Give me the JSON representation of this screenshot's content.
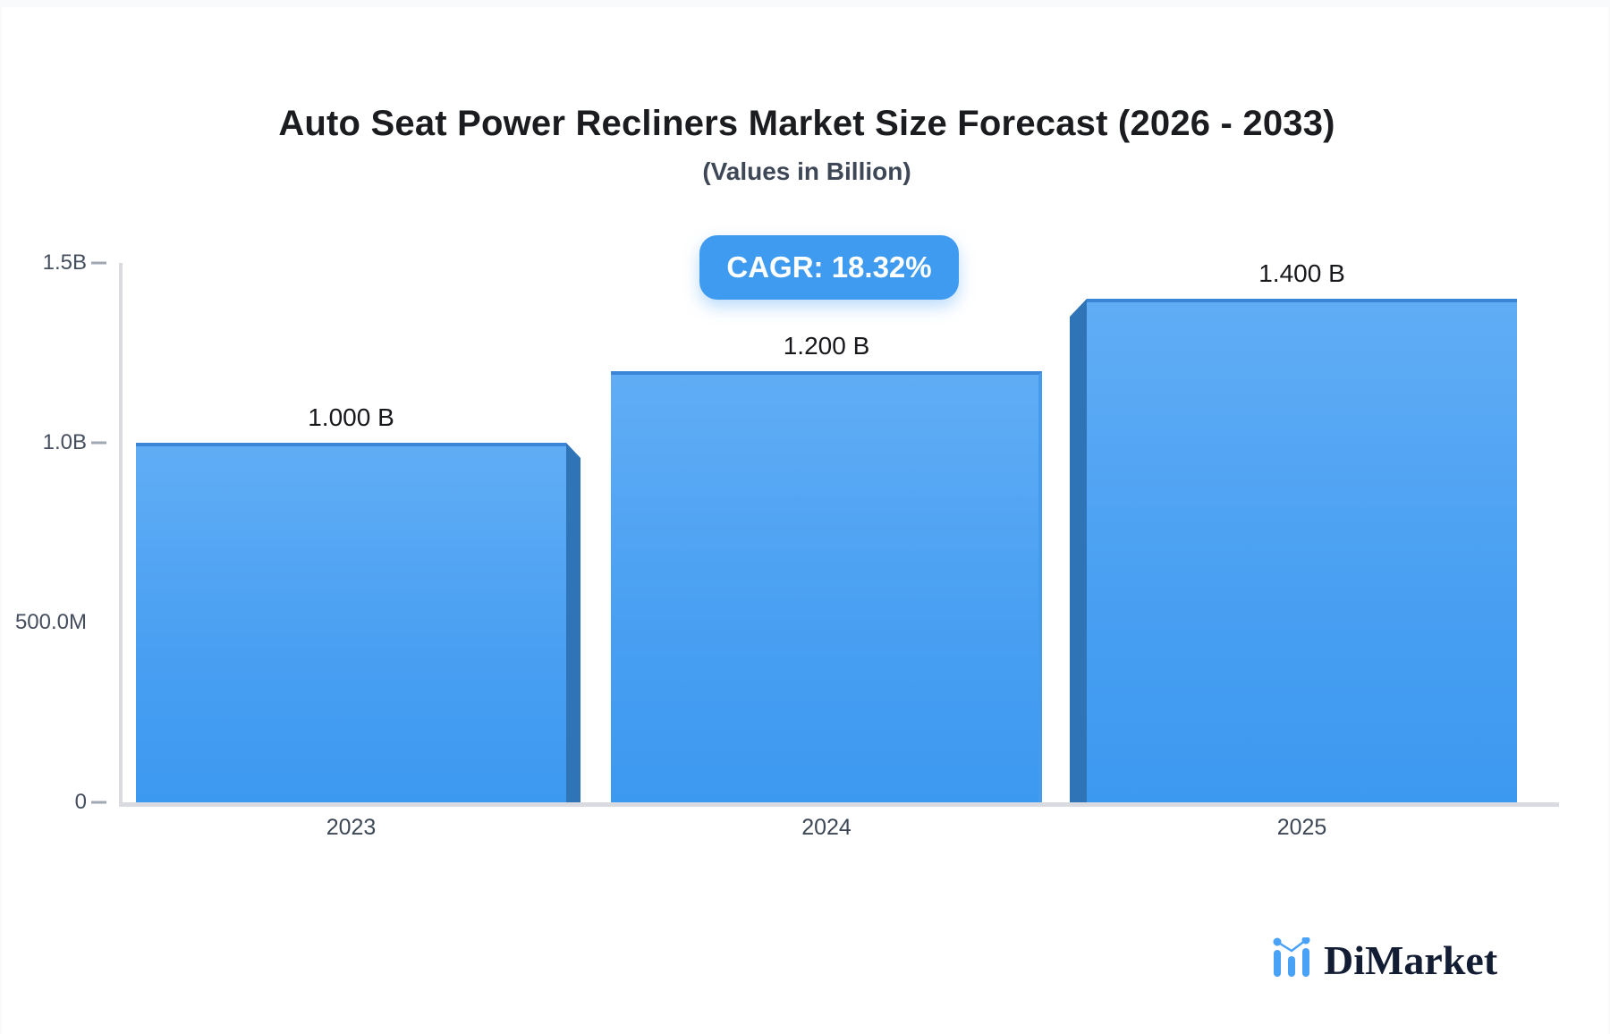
{
  "header": {
    "title": "Auto Seat Power Recliners Market Size Forecast (2026 - 2033)",
    "subtitle": "(Values in Billion)"
  },
  "badge": {
    "label": "CAGR: 18.32%",
    "bg": "#3f9bf0",
    "text_color": "#ffffff"
  },
  "chart_data": {
    "type": "bar",
    "title": "Auto Seat Power Recliners Market Size Forecast (2026 - 2033)",
    "subtitle": "(Values in Billion)",
    "categories": [
      "2023",
      "2024",
      "2025"
    ],
    "values": [
      1.0,
      1.2,
      1.4
    ],
    "value_labels": [
      "1.000 B",
      "1.200 B",
      "1.400 B"
    ],
    "unit": "Billion",
    "cagr_percent": 18.32,
    "ylim": [
      0,
      1.5
    ],
    "y_ticks": [
      {
        "label": "1.5B",
        "value": 1.5,
        "dash": true
      },
      {
        "label": "1.0B",
        "value": 1.0,
        "dash": true
      },
      {
        "label": "500.0M",
        "value": 0.5,
        "dash": false
      },
      {
        "label": "0",
        "value": 0.0,
        "dash": true
      }
    ],
    "grid": false,
    "legend": false,
    "bar_color_top": "#60adf5",
    "bar_color_bottom": "#3c99f0",
    "bar_side_color": "#2e74b7",
    "axis_color": "#d9dbe1"
  },
  "footer": {
    "brand": "DiMarket",
    "brand_icon": "mini-bar-chart-icon",
    "brand_color": "#121c33",
    "icon_color": "#4aa2f7"
  }
}
